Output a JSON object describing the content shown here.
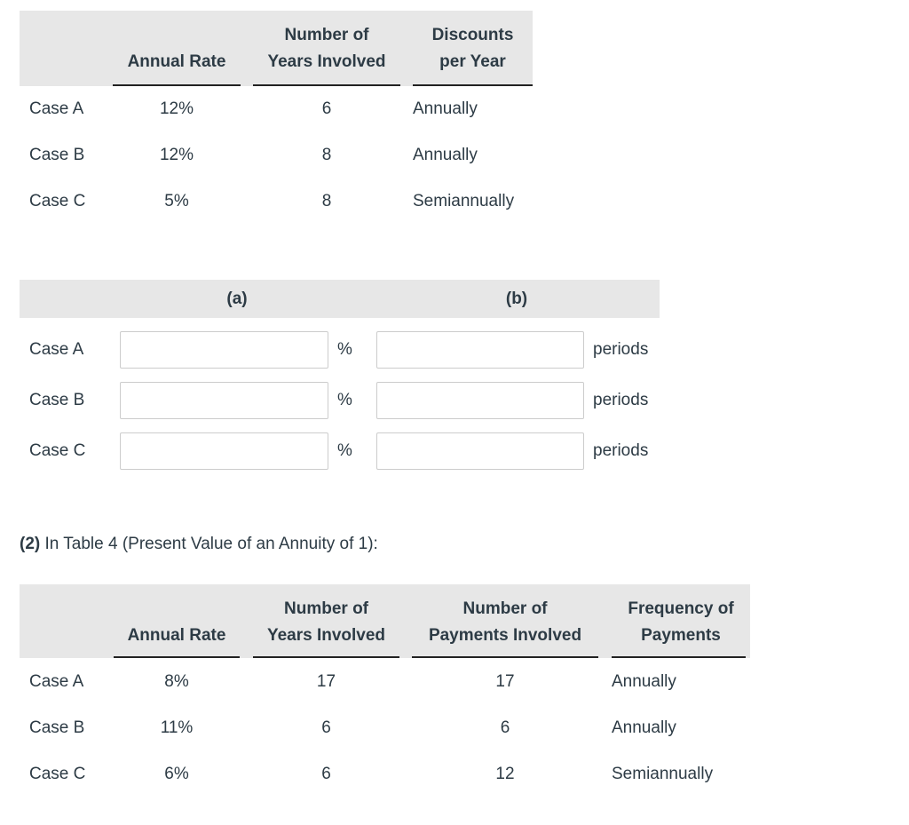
{
  "colors": {
    "header_bg": "#e7e7e7",
    "text": "#2d3b45",
    "underline": "#222222",
    "input_border": "#cccccc"
  },
  "table1": {
    "headers": {
      "annual_rate": {
        "line1": "",
        "line2": "Annual Rate"
      },
      "years": {
        "line1": "Number of",
        "line2": "Years Involved"
      },
      "discounts": {
        "line1": "Discounts",
        "line2": "per Year"
      }
    },
    "rows": [
      {
        "label": "Case A",
        "annual_rate": "12%",
        "years": "6",
        "discounts_per_year": "Annually"
      },
      {
        "label": "Case B",
        "annual_rate": "12%",
        "years": "8",
        "discounts_per_year": "Annually"
      },
      {
        "label": "Case C",
        "annual_rate": "5%",
        "years": "8",
        "discounts_per_year": "Semiannually"
      }
    ]
  },
  "table2": {
    "col_a_label": "(a)",
    "col_b_label": "(b)",
    "rows": [
      {
        "label": "Case A",
        "a": {
          "value": "",
          "suffix": "%"
        },
        "b": {
          "value": "",
          "suffix": "periods"
        }
      },
      {
        "label": "Case B",
        "a": {
          "value": "",
          "suffix": "%"
        },
        "b": {
          "value": "",
          "suffix": "periods"
        }
      },
      {
        "label": "Case C",
        "a": {
          "value": "",
          "suffix": "%"
        },
        "b": {
          "value": "",
          "suffix": "periods"
        }
      }
    ]
  },
  "section2": {
    "prefix": "(2)",
    "text": " In Table 4 (Present Value of an Annuity of 1):"
  },
  "table3": {
    "headers": {
      "annual_rate": {
        "line1": "",
        "line2": "Annual Rate"
      },
      "years": {
        "line1": "Number of",
        "line2": "Years Involved"
      },
      "payments": {
        "line1": "Number of",
        "line2": "Payments Involved"
      },
      "frequency": {
        "line1": "Frequency of",
        "line2": "Payments"
      }
    },
    "rows": [
      {
        "label": "Case A",
        "annual_rate": "8%",
        "years": "17",
        "payments": "17",
        "frequency": "Annually"
      },
      {
        "label": "Case B",
        "annual_rate": "11%",
        "years": "6",
        "payments": "6",
        "frequency": "Annually"
      },
      {
        "label": "Case C",
        "annual_rate": "6%",
        "years": "6",
        "payments": "12",
        "frequency": "Semiannually"
      }
    ]
  }
}
